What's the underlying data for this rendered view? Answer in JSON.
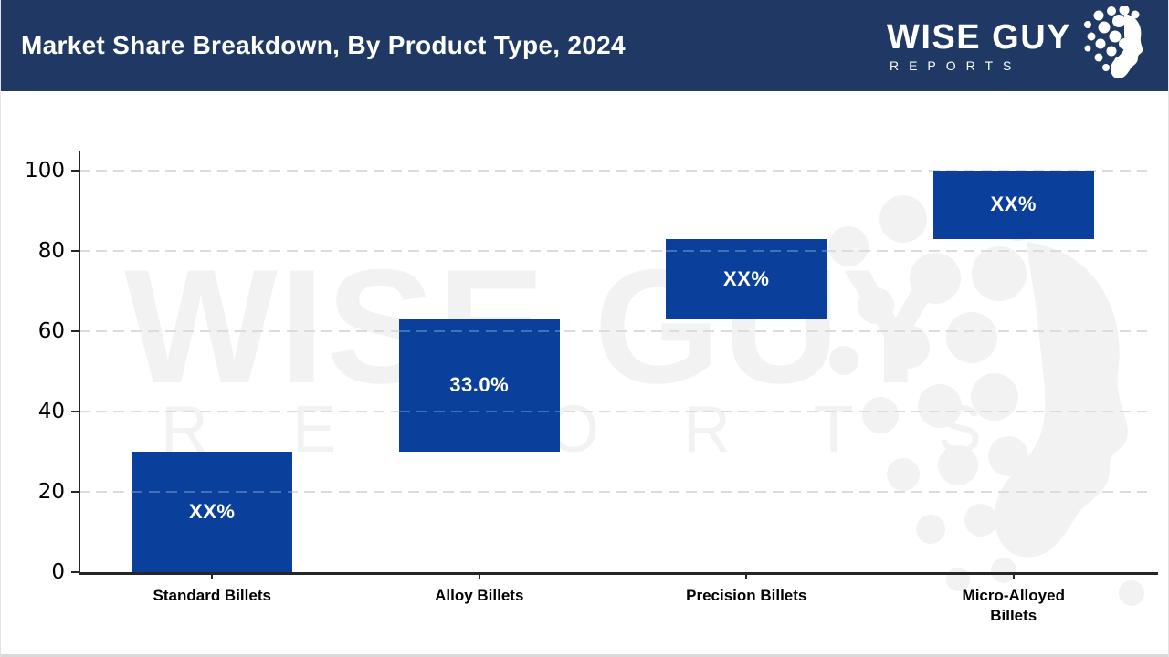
{
  "header": {
    "title": "Market Share Breakdown, By Product Type, 2024",
    "bg_color": "#1f3864",
    "logo": {
      "line1": "WISE GUY",
      "line2": "REPORTS"
    }
  },
  "watermark": {
    "line1": "WISE GUY",
    "line2": "REPORTS",
    "color": "#f2f2f2"
  },
  "chart_data": {
    "type": "bar",
    "subtype": "waterfall",
    "title": "Market Share Breakdown, By Product Type, 2024",
    "categories": [
      "Standard Billets",
      "Alloy Billets",
      "Precision Billets",
      "Micro-Alloyed\nBillets"
    ],
    "segments": [
      {
        "category": "Standard Billets",
        "start": 0,
        "end": 30,
        "label": "XX%"
      },
      {
        "category": "Alloy Billets",
        "start": 30,
        "end": 63,
        "label": "33.0%"
      },
      {
        "category": "Precision Billets",
        "start": 63,
        "end": 83,
        "label": "XX%"
      },
      {
        "category": "Micro-Alloyed Billets",
        "start": 83,
        "end": 100,
        "label": "XX%"
      }
    ],
    "ylim": [
      0,
      100
    ],
    "yticks": [
      0,
      20,
      40,
      60,
      80,
      100
    ],
    "xlabel": "",
    "ylabel": "",
    "grid": true,
    "grid_style": "dashed",
    "legend": false,
    "bar_color": "#0a3f9c",
    "bar_label_color": "#ffffff",
    "axis_color": "#262626"
  }
}
